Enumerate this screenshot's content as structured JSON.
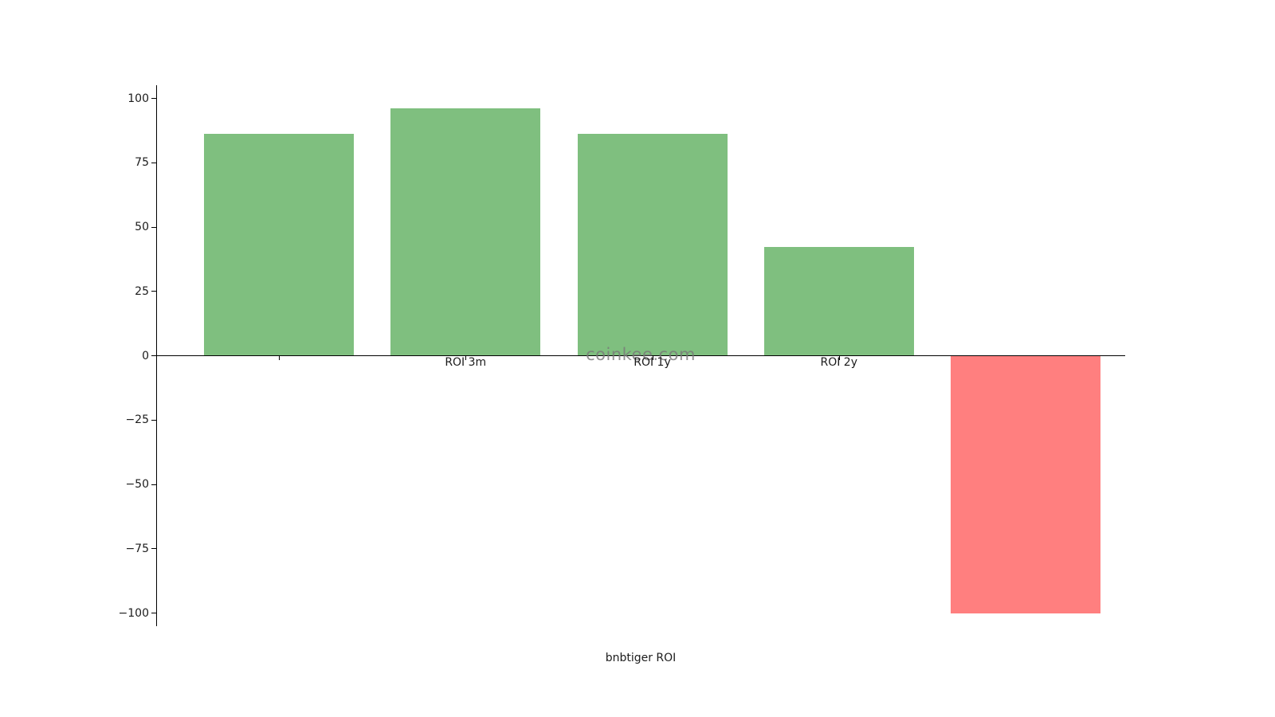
{
  "watermark": {
    "text": "coinkee.com"
  },
  "chart_data": {
    "type": "bar",
    "title": "",
    "xlabel": "bnbtiger ROI",
    "ylabel": "",
    "categories": [
      "",
      "ROI 3m",
      "ROI 1y",
      "ROI 2y",
      ""
    ],
    "values": [
      86,
      96,
      86,
      42,
      -100
    ],
    "bar_colors": [
      "#7fbf7f",
      "#7fbf7f",
      "#7fbf7f",
      "#7fbf7f",
      "#ff7f7f"
    ],
    "y_ticks": [
      {
        "value": 100,
        "label": "100"
      },
      {
        "value": 75,
        "label": "75"
      },
      {
        "value": 50,
        "label": "50"
      },
      {
        "value": 25,
        "label": "25"
      },
      {
        "value": 0,
        "label": "0"
      },
      {
        "value": -25,
        "label": "−25"
      },
      {
        "value": -50,
        "label": "−50"
      },
      {
        "value": -75,
        "label": "−75"
      },
      {
        "value": -100,
        "label": "−100"
      }
    ],
    "ylim": [
      -105,
      105
    ],
    "grid": false,
    "legend": null,
    "colors": {
      "positive": "#7fbf7f",
      "negative": "#ff7f7f",
      "axis": "#000000",
      "tick_text": "#1c1c1c",
      "watermark": "#7a7a7a"
    }
  }
}
